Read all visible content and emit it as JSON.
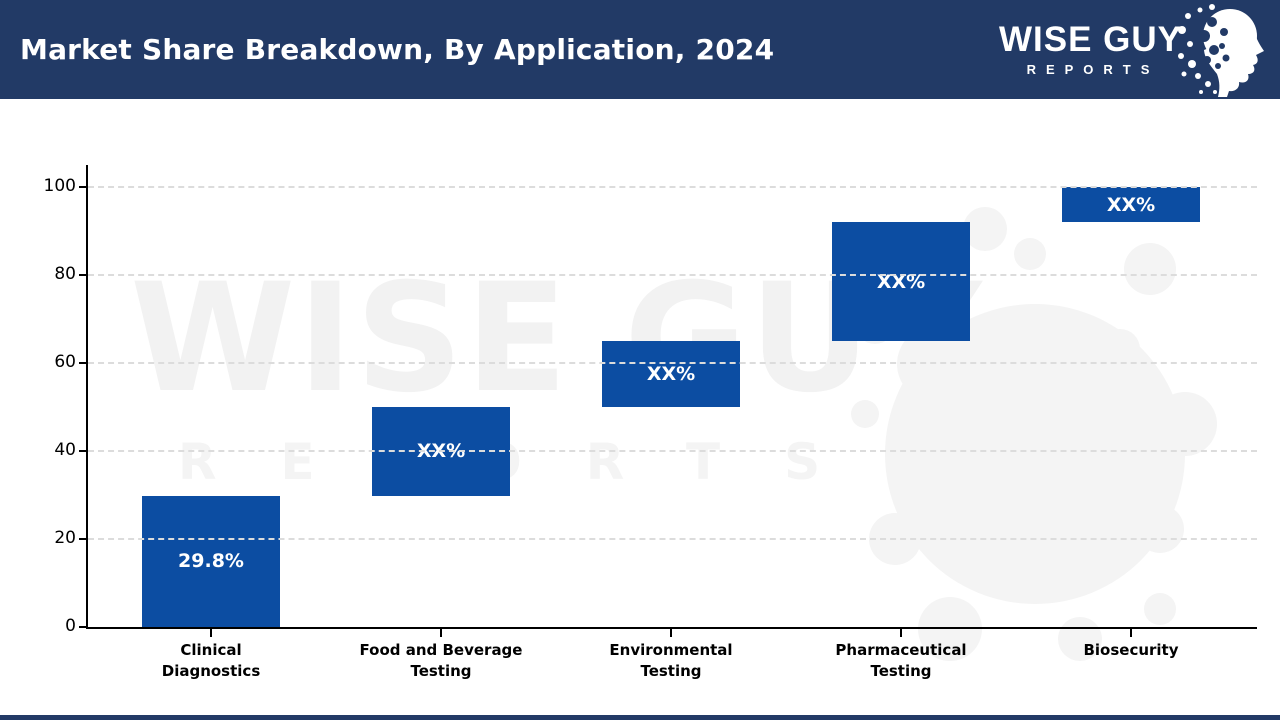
{
  "header": {
    "title": "Market Share Breakdown, By Application, 2024",
    "logo": {
      "wordmark": "WISE GUY",
      "sub": "REPORTS"
    }
  },
  "watermark": {
    "wordmark": "WISE GUY",
    "sub": "REPORTS"
  },
  "colors": {
    "header_bg": "#223a66",
    "bar": "#0c4da2",
    "bar_label": "#ffffff",
    "grid": "#dcdcdc",
    "axis": "#000000",
    "watermark": "#f2f2f2"
  },
  "chart_data": {
    "type": "bar",
    "subtype": "waterfall-stacked-percent",
    "title": "Market Share Breakdown, By Application, 2024",
    "categories": [
      {
        "name": "Clinical Diagnostics",
        "lines": [
          "Clinical",
          "Diagnostics"
        ]
      },
      {
        "name": "Food and Beverage Testing",
        "lines": [
          "Food and Beverage",
          "Testing"
        ]
      },
      {
        "name": "Environmental Testing",
        "lines": [
          "Environmental",
          "Testing"
        ]
      },
      {
        "name": "Pharmaceutical Testing",
        "lines": [
          "Pharmaceutical",
          "Testing"
        ]
      },
      {
        "name": "Biosecurity",
        "lines": [
          "Biosecurity"
        ]
      }
    ],
    "segments": [
      {
        "category": "Clinical Diagnostics",
        "start": 0,
        "end": 29.8,
        "label": "29.8%"
      },
      {
        "category": "Food and Beverage Testing",
        "start": 29.8,
        "end": 50,
        "label": "XX%"
      },
      {
        "category": "Environmental Testing",
        "start": 50,
        "end": 65,
        "label": "XX%"
      },
      {
        "category": "Pharmaceutical Testing",
        "start": 65,
        "end": 92,
        "label": "XX%"
      },
      {
        "category": "Biosecurity",
        "start": 92,
        "end": 100,
        "label": "XX%"
      }
    ],
    "yticks": [
      0,
      20,
      40,
      60,
      80,
      100
    ],
    "ylim": [
      0,
      105
    ],
    "ylabel": "",
    "xlabel": "",
    "grid": {
      "axis": "y",
      "style": "dashed",
      "drawn_above_bars": true
    },
    "legend": "none"
  }
}
